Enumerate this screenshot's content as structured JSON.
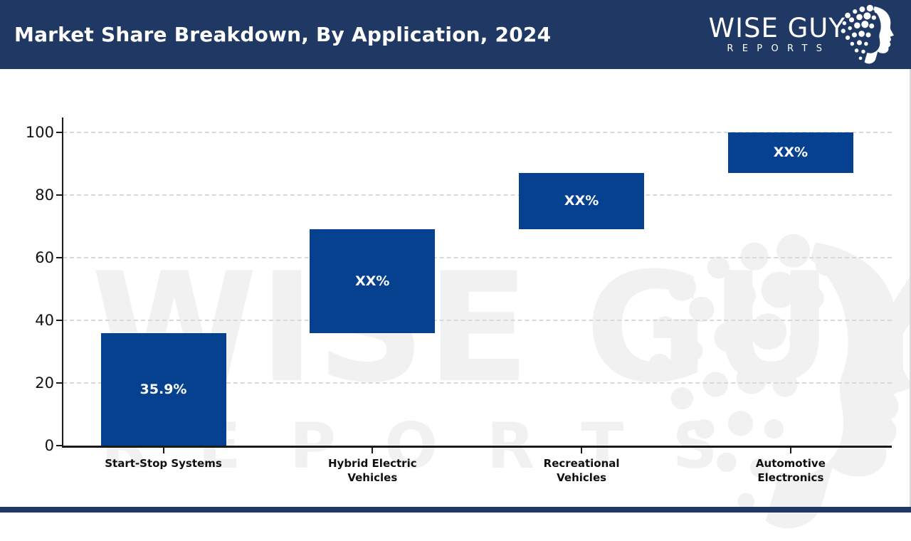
{
  "header": {
    "title": "Market Share Breakdown, By Application, 2024",
    "logo_line1": "WISE GUY",
    "logo_line2": "REPORTS",
    "bg_color": "#1f3864"
  },
  "watermark": {
    "line1": "WISE GUY",
    "line2": "REPORTS"
  },
  "chart_data": {
    "type": "bar",
    "subtype": "waterfall",
    "title": "Market Share Breakdown, By Application, 2024",
    "categories": [
      "Start-Stop Systems",
      "Hybrid Electric\nVehicles",
      "Recreational\nVehicles",
      "Automotive\nElectronics"
    ],
    "segments": [
      {
        "category": "Start-Stop Systems",
        "start": 0,
        "end": 35.9,
        "label": "35.9%"
      },
      {
        "category": "Hybrid Electric Vehicles",
        "start": 35.9,
        "end": 69,
        "label": "XX%"
      },
      {
        "category": "Recreational Vehicles",
        "start": 69,
        "end": 87,
        "label": "XX%"
      },
      {
        "category": "Automotive Electronics",
        "start": 87,
        "end": 100,
        "label": "XX%"
      }
    ],
    "values_labeled": [
      35.9,
      null,
      null,
      null
    ],
    "yticks": [
      0,
      20,
      40,
      60,
      80,
      100
    ],
    "ylim": [
      0,
      100
    ],
    "xlabel": "",
    "ylabel": "",
    "grid": true,
    "grid_style": "dashed",
    "legend": "none",
    "bar_color": "#06418f",
    "label_color": "#ffffff"
  }
}
